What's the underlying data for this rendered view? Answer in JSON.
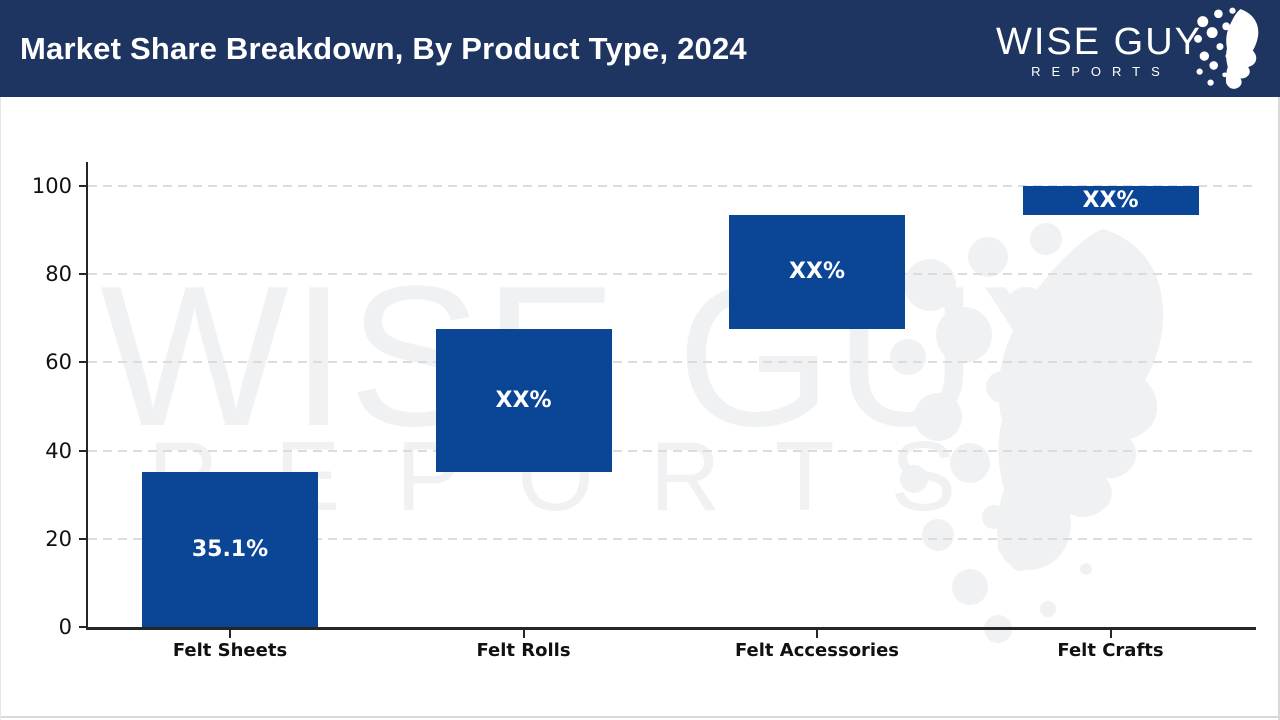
{
  "header": {
    "title": "Market Share Breakdown, By Product Type, 2024",
    "logo": {
      "wordmark": "WISE GUY",
      "subtitle": "REPORTS"
    }
  },
  "watermark": {
    "wordmark": "WISE GUY",
    "subtitle": "REPORTS"
  },
  "colors": {
    "header_bg": "#1e3461",
    "bar_fill": "#0b4696",
    "bar_label": "#ffffff",
    "axis": "#262626",
    "tick_label": "#111111",
    "gridline": "#dcdcdc",
    "watermark": "#f0f1f3",
    "page_border": "#d9d9d9"
  },
  "chart_data": {
    "type": "bar",
    "subtype": "waterfall",
    "title": "Market Share Breakdown, By Product Type, 2024",
    "categories": [
      "Felt Sheets",
      "Felt Rolls",
      "Felt Accessories",
      "Felt Crafts"
    ],
    "segments": [
      {
        "category": "Felt Sheets",
        "start": 0,
        "end": 35.1,
        "label": "35.1%"
      },
      {
        "category": "Felt Rolls",
        "start": 35.1,
        "end": 67.6,
        "label": "XX%"
      },
      {
        "category": "Felt Accessories",
        "start": 67.6,
        "end": 93.5,
        "label": "XX%"
      },
      {
        "category": "Felt Crafts",
        "start": 93.5,
        "end": 100,
        "label": "XX%"
      }
    ],
    "xlabel": "",
    "ylabel": "",
    "ylim": [
      0,
      100
    ],
    "y_ticks": [
      0,
      20,
      40,
      60,
      80,
      100
    ],
    "grid": "horizontal-dashed",
    "legend": "none"
  }
}
